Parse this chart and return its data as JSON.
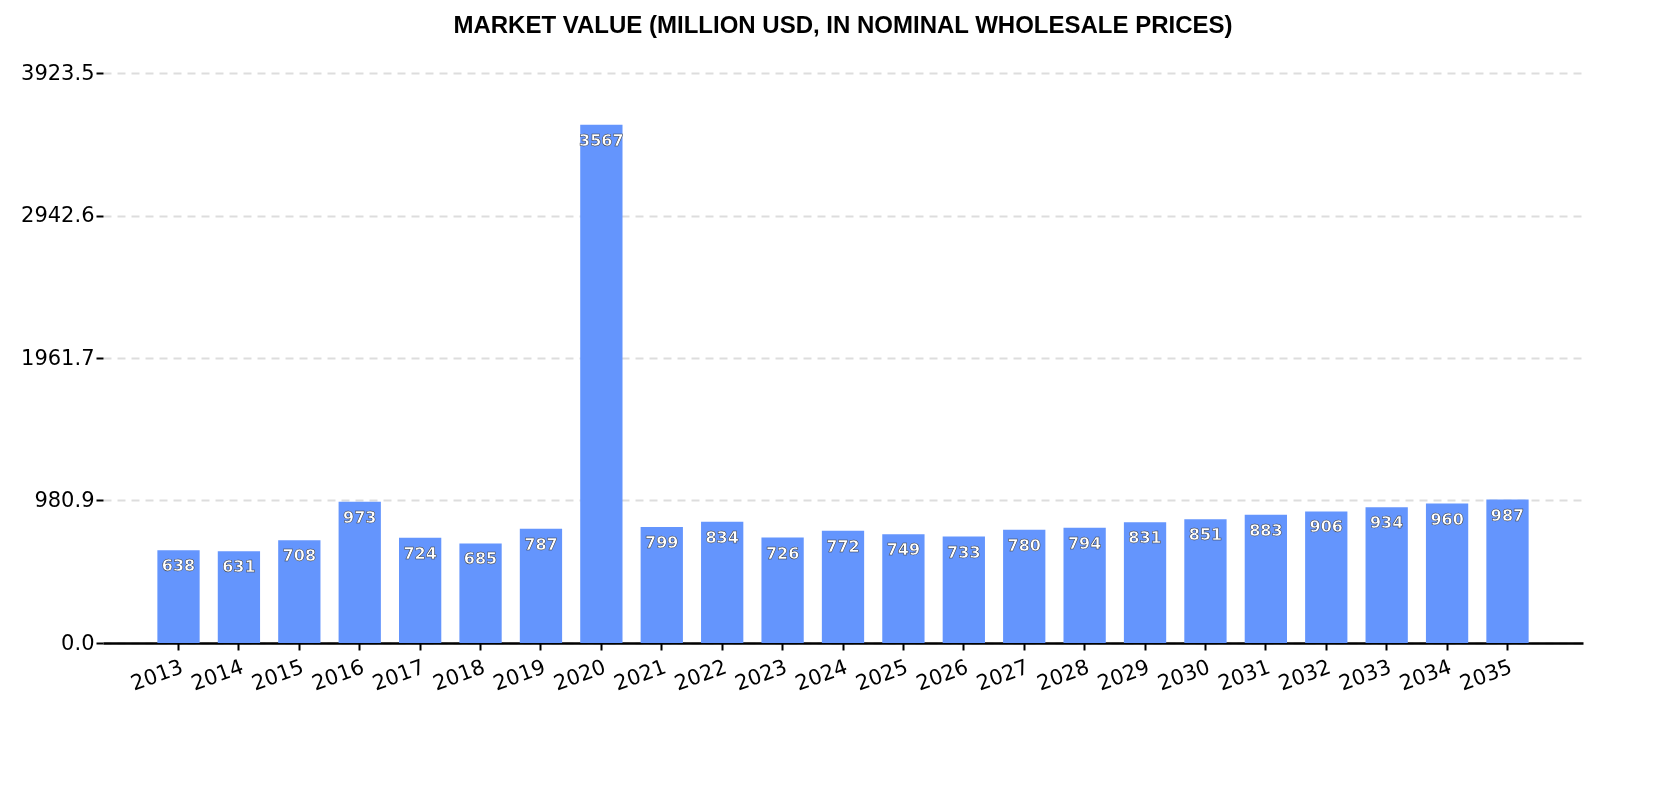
{
  "chart_data": {
    "type": "bar",
    "title": "MARKET VALUE (MILLION USD, IN NOMINAL WHOLESALE PRICES)",
    "categories": [
      "2013",
      "2014",
      "2015",
      "2016",
      "2017",
      "2018",
      "2019",
      "2020",
      "2021",
      "2022",
      "2023",
      "2024",
      "2025",
      "2026",
      "2027",
      "2028",
      "2029",
      "2030",
      "2031",
      "2032",
      "2033",
      "2034",
      "2035"
    ],
    "values": [
      638,
      631,
      708,
      973,
      724,
      685,
      787,
      3567,
      799,
      834,
      726,
      772,
      749,
      733,
      780,
      794,
      831,
      851,
      883,
      906,
      934,
      960,
      987
    ],
    "color": "#6495fd",
    "ylim": [
      0,
      3923.5
    ],
    "yticks": [
      {
        "value": 0,
        "label": "0.0"
      },
      980.9,
      1961.7,
      2942.6,
      3923.5
    ],
    "grid": "y",
    "data_labels": true
  }
}
